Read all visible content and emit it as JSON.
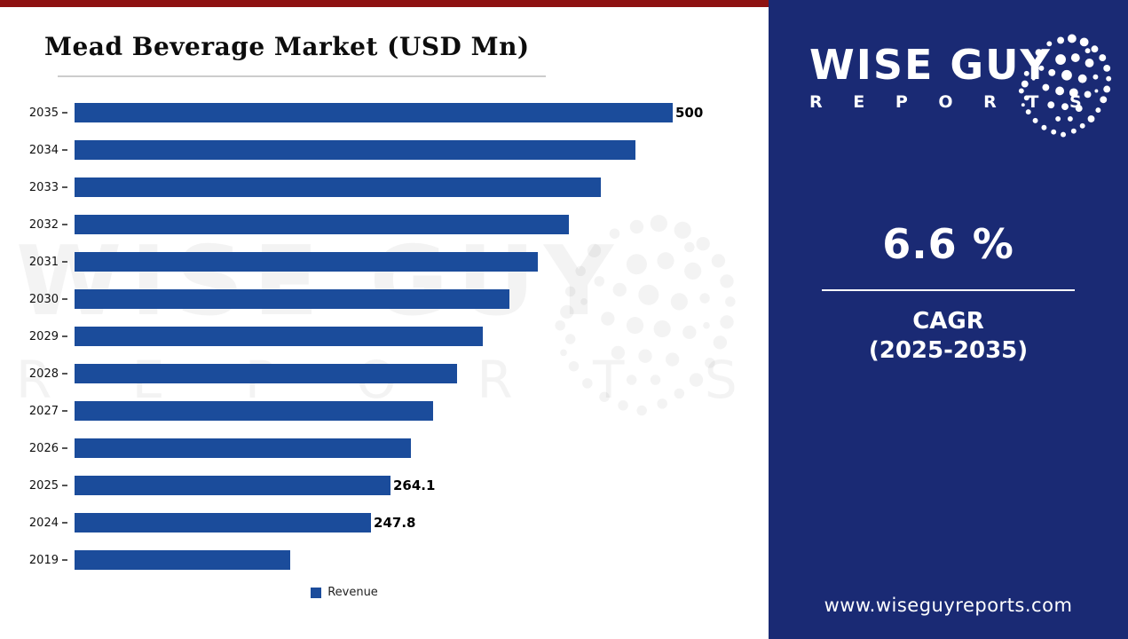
{
  "page": {
    "top_bar_color": "#8e1212",
    "background": "#ffffff"
  },
  "chart_data": {
    "type": "bar",
    "orientation": "horizontal",
    "title": "Mead Beverage Market (USD Mn)",
    "categories": [
      "2035",
      "2034",
      "2033",
      "2032",
      "2031",
      "2030",
      "2029",
      "2028",
      "2027",
      "2026",
      "2025",
      "2024",
      "2019"
    ],
    "values": [
      500,
      469.1,
      440.1,
      412.9,
      387.3,
      363.3,
      340.9,
      319.8,
      300.0,
      281.4,
      264.1,
      247.8,
      180.0
    ],
    "data_labels": [
      "500",
      "",
      "",
      "",
      "",
      "",
      "",
      "",
      "",
      "",
      "264.1",
      "247.8",
      ""
    ],
    "xlim": [
      0,
      500
    ],
    "grid": false,
    "bar_color": "#1b4c9b",
    "legend_position": "bottom-center",
    "legend": [
      {
        "label": "Revenue",
        "color": "#1b4c9b"
      }
    ]
  },
  "watermark": {
    "line1": "WISE GUY",
    "line2": "R E P O R T S"
  },
  "sidebar": {
    "background": "#1a2a74",
    "logo_line1": "WISE GUY",
    "logo_line2": "R E P O R T S",
    "cagr_value": "6.6 %",
    "cagr_label_line1": "CAGR",
    "cagr_label_line2": "(2025-2035)",
    "website": "www.wiseguyreports.com"
  }
}
